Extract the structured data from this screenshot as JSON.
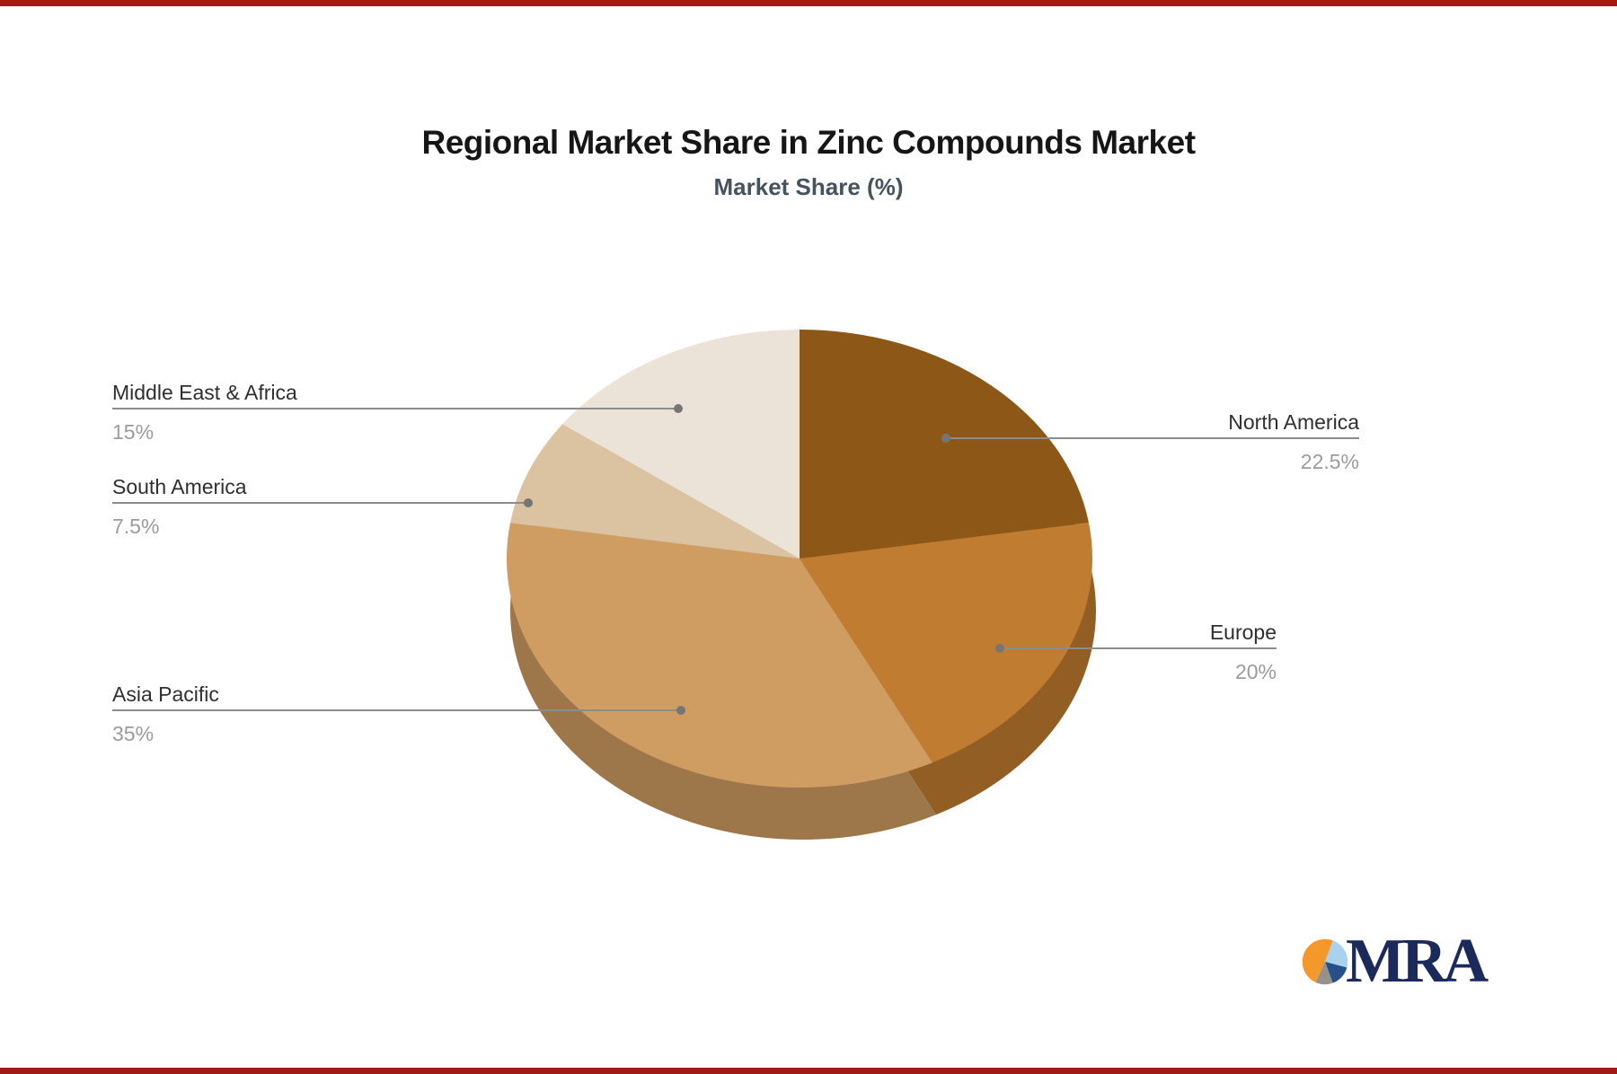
{
  "page": {
    "background": "#ffffff",
    "accent_bar_color": "#9e1b17"
  },
  "header": {
    "title": "Regional Market Share in Zinc Compounds Market",
    "subtitle": "Market Share (%)"
  },
  "chart_data": {
    "type": "pie",
    "title": "Regional Market Share in Zinc Compounds Market",
    "subtitle": "Market Share (%)",
    "unit": "%",
    "style": "3d-pie",
    "start_angle": "12-oclock",
    "direction": "clockwise",
    "leader_line_color": "#8c8c8c",
    "leader_dot_color": "#757575",
    "label_color": "#2f2f2f",
    "value_color": "#9b9b9b",
    "slices": [
      {
        "label": "North America",
        "value": 22.5,
        "display": "22.5%",
        "color": "#8d5817",
        "callout_side": "right"
      },
      {
        "label": "Europe",
        "value": 20,
        "display": "20%",
        "color": "#c07c30",
        "callout_side": "right"
      },
      {
        "label": "Asia Pacific",
        "value": 35,
        "display": "35%",
        "color": "#cf9d62",
        "callout_side": "left"
      },
      {
        "label": "South America",
        "value": 7.5,
        "display": "7.5%",
        "color": "#dbc2a1",
        "callout_side": "left"
      },
      {
        "label": "Middle East & Africa",
        "value": 15,
        "display": "15%",
        "color": "#ece3d8",
        "callout_side": "left"
      }
    ]
  },
  "logo": {
    "text": "MRA",
    "text_color": "#1b2a5a",
    "pie_colors": {
      "orange": "#f5982b",
      "lightblue": "#a8d2ee",
      "navy": "#26508a",
      "gray": "#97918b"
    }
  }
}
